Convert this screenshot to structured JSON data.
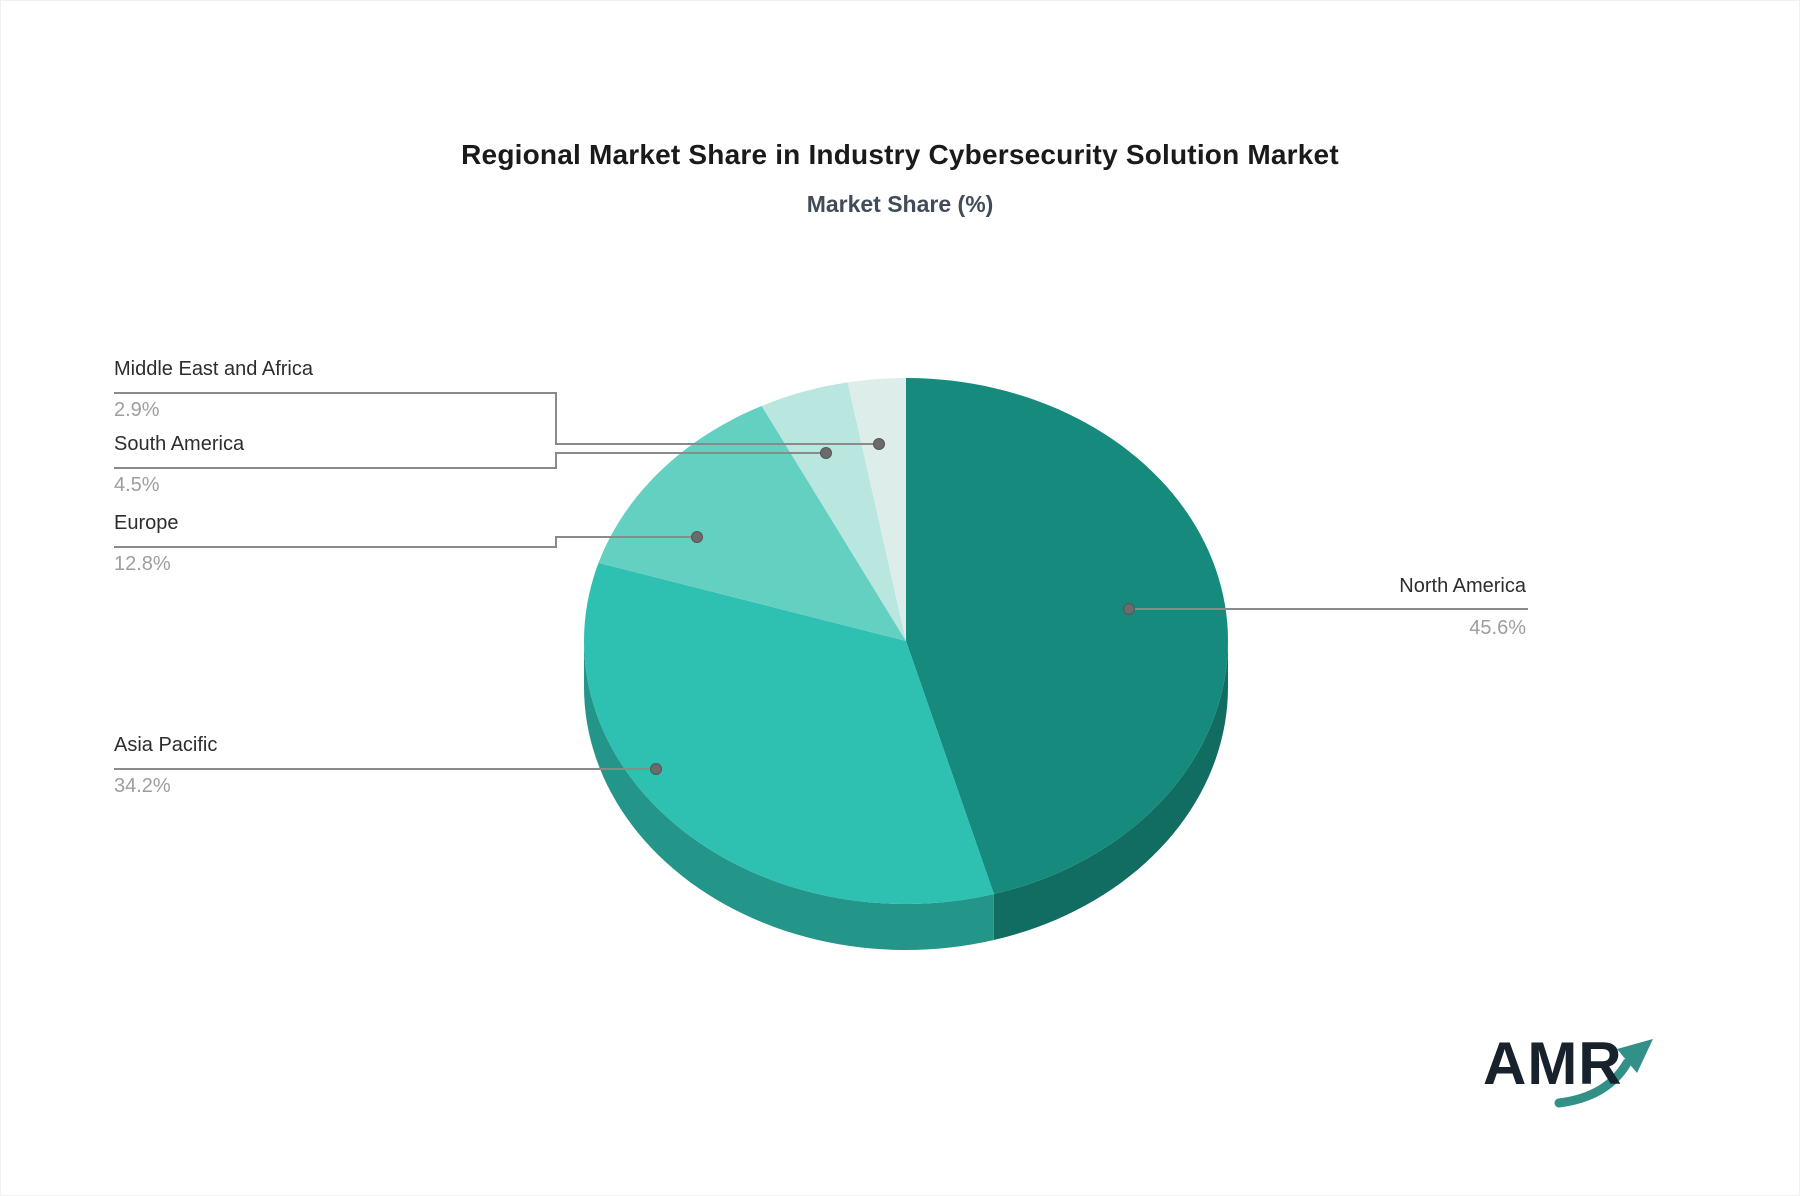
{
  "chart_data": {
    "type": "pie",
    "title": "Regional Market Share in Industry Cybersecurity Solution Market",
    "subtitle": "Market Share (%)",
    "unit": "%",
    "start_angle_deg": 0,
    "direction": "clockwise",
    "style": "3d-pie",
    "slices": [
      {
        "label": "North America",
        "value": 45.6,
        "display": "45.6%",
        "color": "#168b7d"
      },
      {
        "label": "Asia Pacific",
        "value": 34.2,
        "display": "34.2%",
        "color": "#2ec0b0"
      },
      {
        "label": "Europe",
        "value": 12.8,
        "display": "12.8%",
        "color": "#63d0c2"
      },
      {
        "label": "South America",
        "value": 4.5,
        "display": "4.5%",
        "color": "#b9e6df"
      },
      {
        "label": "Middle East and Africa",
        "value": 2.9,
        "display": "2.9%",
        "color": "#ddeeea"
      }
    ],
    "colors": {
      "leader_line": "#8a8a8a",
      "dot_fill": "#6b6b6b",
      "dot_stroke": "#565656",
      "label_text": "#2d2d2d",
      "value_text": "#9e9e9e"
    },
    "legend_position": "callouts",
    "grid": false
  },
  "logo": {
    "text": "AMR"
  }
}
